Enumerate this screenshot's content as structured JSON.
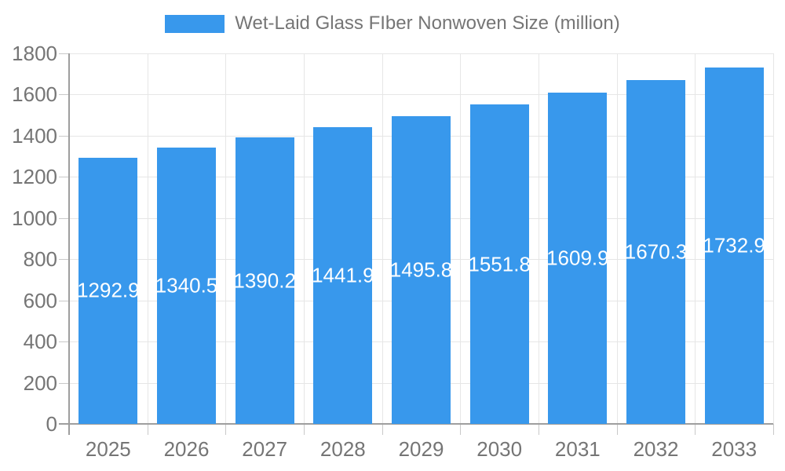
{
  "chart_data": {
    "type": "bar",
    "title": "Wet-Laid Glass FIber Nonwoven Size (million)",
    "legend": {
      "position": "top",
      "label": "Wet-Laid Glass FIber Nonwoven Size (million)"
    },
    "categories": [
      "2025",
      "2026",
      "2027",
      "2028",
      "2029",
      "2030",
      "2031",
      "2032",
      "2033"
    ],
    "values": [
      1292.9,
      1340.5,
      1390.2,
      1441.9,
      1495.8,
      1551.8,
      1609.9,
      1670.3,
      1732.9
    ],
    "xlabel": "",
    "ylabel": "",
    "ylim": [
      0,
      1800
    ],
    "ytick_step": 200,
    "yticks": [
      0,
      200,
      400,
      600,
      800,
      1000,
      1200,
      1400,
      1600,
      1800
    ],
    "grid": true,
    "value_labels": "centered-in-bar",
    "colors": {
      "bar": "#3898EC",
      "axis_text": "#757575",
      "value_text": "#ffffff",
      "gridline": "#e6e6e6",
      "axis_line": "#9e9e9e",
      "tick": "#c9c9c9",
      "background": "#ffffff"
    }
  }
}
